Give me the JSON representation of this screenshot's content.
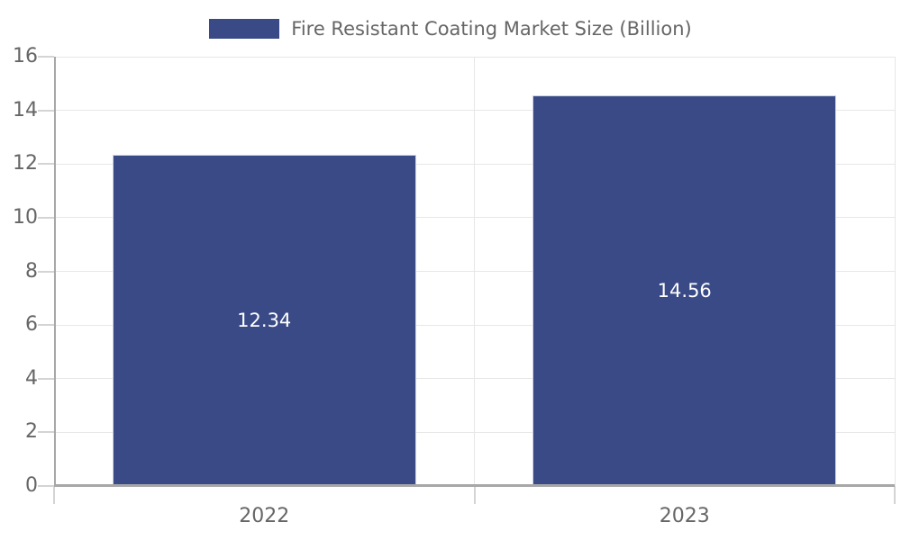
{
  "legend": {
    "label": "Fire Resistant Coating Market Size (Billion)",
    "swatch_color": "#394a87"
  },
  "chart_data": {
    "type": "bar",
    "title": "Fire Resistant Coating Market Size (Billion)",
    "categories": [
      "2022",
      "2023"
    ],
    "values": [
      12.34,
      14.56
    ],
    "value_labels": [
      "12.34",
      "14.56"
    ],
    "series": [
      {
        "name": "Fire Resistant Coating Market Size (Billion)",
        "values": [
          12.34,
          14.56
        ]
      }
    ],
    "xlabel": "",
    "ylabel": "",
    "ylim": [
      0,
      16
    ],
    "yticks": [
      0,
      2,
      4,
      6,
      8,
      10,
      12,
      14,
      16
    ],
    "grid": true,
    "legend_position": "top-center",
    "bar_color": "#394a87",
    "value_label_color": "#ffffff"
  },
  "colors": {
    "bar": "#394a87",
    "bar_edge": "#ccd2e5",
    "gridline": "#e7e7e7",
    "axis": "#a7a7a7",
    "tick": "#d4d4d4",
    "label": "#666666",
    "background": "#ffffff"
  }
}
